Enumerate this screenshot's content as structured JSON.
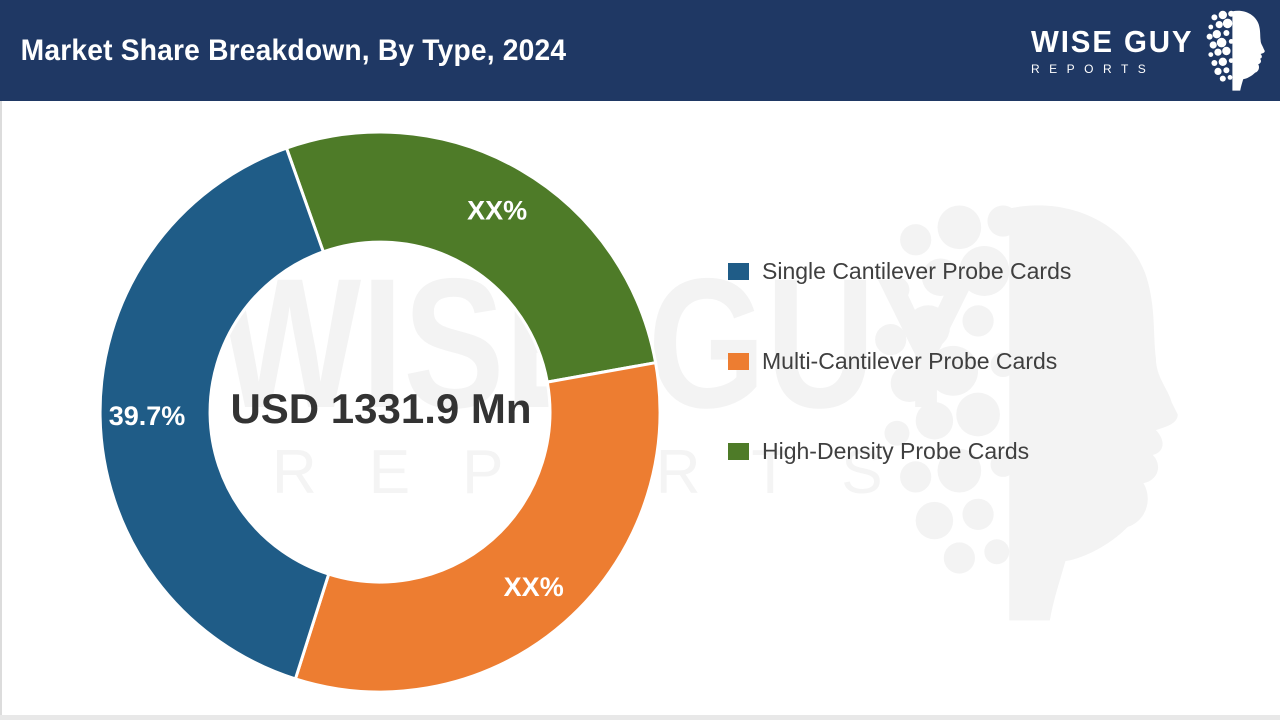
{
  "header": {
    "title": "Market Share Breakdown, By Type, 2024",
    "bg_color": "#1F3864",
    "logo": {
      "line1": "WISE GUY",
      "line2": "REPORTS"
    }
  },
  "watermark": {
    "line1": "WISE GUY",
    "line2": "REPORTS"
  },
  "chart_data": {
    "type": "pie",
    "subtype": "donut",
    "title": "Market Share Breakdown, By Type, 2024",
    "center_label": "USD 1331.9 Mn",
    "start_angle_css_deg": 340.5,
    "direction": "clockwise",
    "legend_position": "right",
    "segments": [
      {
        "label": "High-Density Probe Cards",
        "display_value": "XX%",
        "percent": 27.6,
        "color": "#4E7B28"
      },
      {
        "label": "Multi-Cantilever Probe Cards",
        "display_value": "XX%",
        "percent": 32.7,
        "color": "#ED7D31"
      },
      {
        "label": "Single Cantilever Probe Cards",
        "display_value": "39.7%",
        "percent": 39.7,
        "color": "#1F5C87"
      }
    ]
  },
  "legend": {
    "items": [
      {
        "label": "Single Cantilever Probe Cards",
        "color": "#1F5C87"
      },
      {
        "label": "Multi-Cantilever Probe Cards",
        "color": "#ED7D31"
      },
      {
        "label": "High-Density Probe Cards",
        "color": "#4E7B28"
      }
    ]
  },
  "colors": {
    "header_bg": "#1F3864",
    "center_text": "#333333",
    "legend_text": "#3f3f3f",
    "watermark": "#f3f3f3"
  }
}
